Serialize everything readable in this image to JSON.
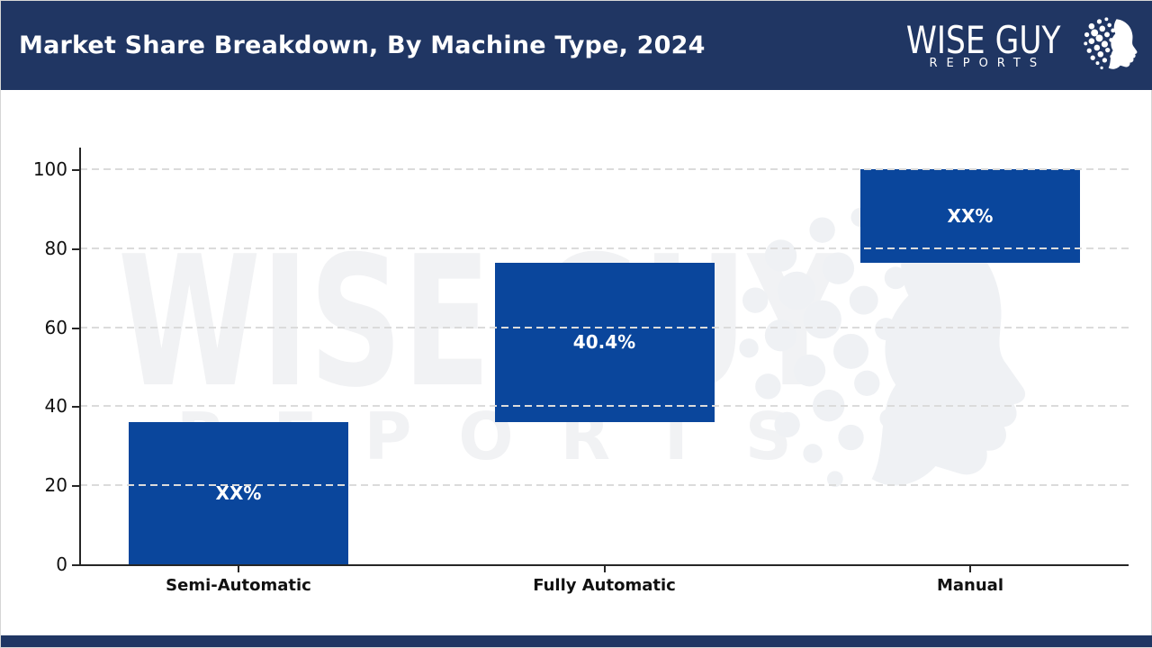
{
  "header": {
    "title": "Market Share Breakdown, By Machine Type, 2024",
    "logo_line1": "WISE GUY",
    "logo_line2": "REPORTS"
  },
  "watermark": {
    "line1": "WISE GUY",
    "line2": "REPORTS"
  },
  "colors": {
    "header_bg": "#203663",
    "footer_bg": "#203663",
    "bar": "#0a469c",
    "bar_label": "#ffffff",
    "grid": "#dbdbdb",
    "axis": "#262626",
    "tick_label": "#111111",
    "watermark": "#f1f2f4"
  },
  "chart_data": {
    "type": "bar",
    "variant": "floating-segment-bars",
    "title": "Market Share Breakdown, By Machine Type, 2024",
    "categories": [
      "Semi-Automatic",
      "Fully Automatic",
      "Manual"
    ],
    "series": [
      {
        "name": "Market share (%)",
        "segments": [
          {
            "category": "Semi-Automatic",
            "start": 0,
            "end": 36,
            "label": "XX%"
          },
          {
            "category": "Fully Automatic",
            "start": 36,
            "end": 76.4,
            "label": "40.4%"
          },
          {
            "category": "Manual",
            "start": 76.4,
            "end": 100,
            "label": "XX%"
          }
        ]
      }
    ],
    "bar_labels": [
      "XX%",
      "40.4%",
      "XX%"
    ],
    "xlabel": "",
    "ylabel": "",
    "ylim": [
      0,
      100
    ],
    "yticks": [
      0,
      20,
      40,
      60,
      80,
      100
    ],
    "grid": "horizontal-dashed-over-bars",
    "legend": "none"
  }
}
